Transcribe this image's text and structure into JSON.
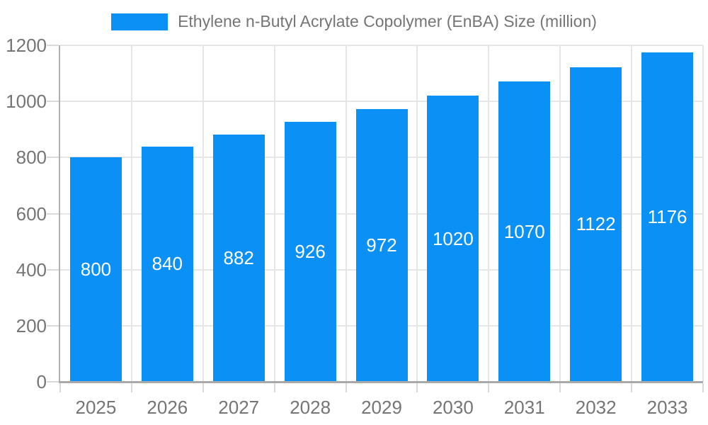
{
  "legend": {
    "items": [
      {
        "label": "Ethylene n-Butyl Acrylate Copolymer (EnBA) Size (million)",
        "color": "#0b90f5"
      }
    ]
  },
  "chart_data": {
    "type": "bar",
    "title": "",
    "categories": [
      "2025",
      "2026",
      "2027",
      "2028",
      "2029",
      "2030",
      "2031",
      "2032",
      "2033"
    ],
    "series": [
      {
        "name": "Ethylene n-Butyl Acrylate Copolymer (EnBA) Size (million)",
        "color": "#0b90f5",
        "values": [
          800,
          840,
          882,
          926,
          972,
          1020,
          1070,
          1122,
          1176
        ]
      }
    ],
    "xlabel": "",
    "ylabel": "",
    "ylim": [
      0,
      1200
    ],
    "yticks": [
      0,
      200,
      400,
      600,
      800,
      1000,
      1200
    ],
    "grid": true,
    "legend_position": "top",
    "value_labels": "inside-center",
    "value_label_color": "#ffffff"
  },
  "colors": {
    "bar": "#0b90f5",
    "grid": "#e6e6e6",
    "axis": "#b0b0b0",
    "tick": "#d9d9d9",
    "text": "#757575",
    "value_text": "#ffffff",
    "background": "#ffffff"
  }
}
